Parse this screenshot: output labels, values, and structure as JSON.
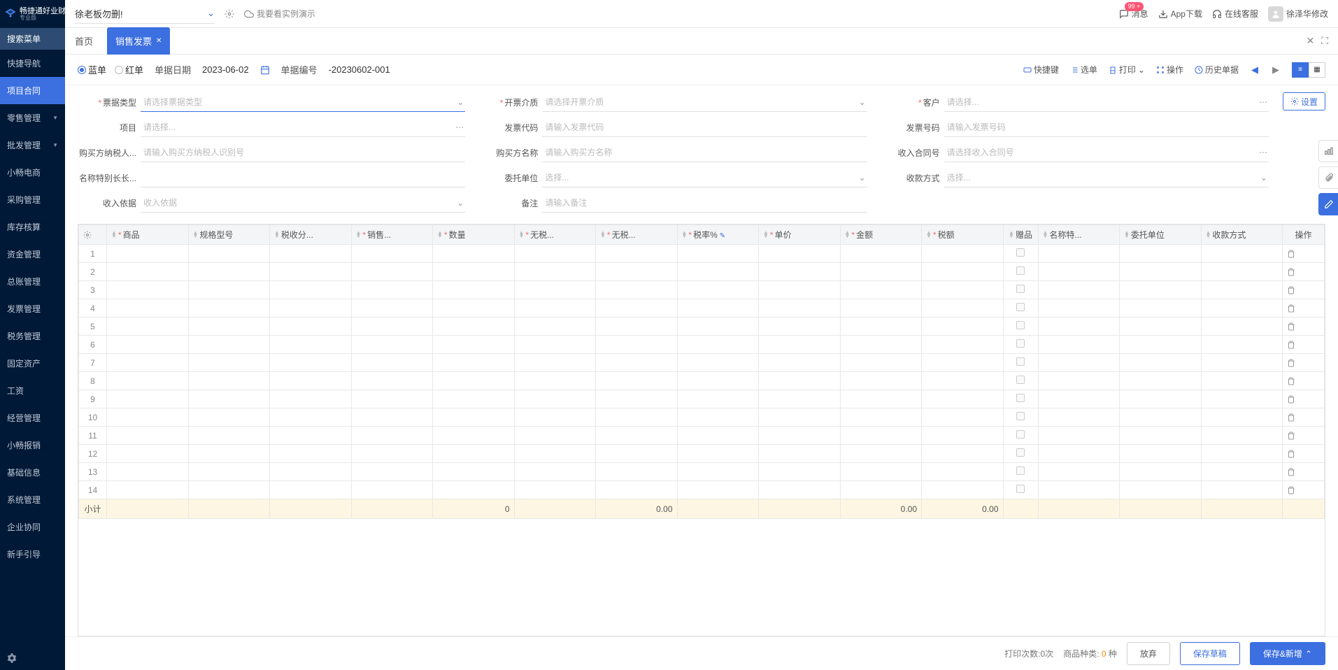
{
  "brand": {
    "name": "畅捷通好业财",
    "edition": "专业版"
  },
  "sidebar": {
    "search": "搜索菜单",
    "items": [
      {
        "label": "快捷导航",
        "caret": false
      },
      {
        "label": "项目合同",
        "caret": false,
        "active": true
      },
      {
        "label": "零售管理",
        "caret": true
      },
      {
        "label": "批发管理",
        "caret": true
      },
      {
        "label": "小畅电商",
        "caret": false
      },
      {
        "label": "采购管理",
        "caret": false
      },
      {
        "label": "库存核算",
        "caret": false
      },
      {
        "label": "资金管理",
        "caret": false
      },
      {
        "label": "总账管理",
        "caret": false
      },
      {
        "label": "发票管理",
        "caret": false
      },
      {
        "label": "税务管理",
        "caret": false
      },
      {
        "label": "固定资产",
        "caret": false
      },
      {
        "label": "工资",
        "caret": false
      },
      {
        "label": "经营管理",
        "caret": false
      },
      {
        "label": "小畅报销",
        "caret": false
      },
      {
        "label": "基础信息",
        "caret": false
      },
      {
        "label": "系统管理",
        "caret": false
      },
      {
        "label": "企业协同",
        "caret": false
      },
      {
        "label": "新手引导",
        "caret": false
      }
    ]
  },
  "topbar": {
    "dropdown": "徐老板勿删!",
    "demo": "我要看实例演示",
    "msg": "消息",
    "msg_badge": "99 +",
    "download": "App下载",
    "support": "在线客服",
    "user": "徐泽华修改"
  },
  "tabs": {
    "home": "首页",
    "active": "销售发票"
  },
  "toolbar": {
    "radio_blue": "蓝单",
    "radio_red": "红单",
    "date_label": "单据日期",
    "date_value": "2023-06-02",
    "doc_no_label": "单据编号",
    "doc_no_value": "-20230602-001",
    "shortcut": "快捷键",
    "select": "选单",
    "print": "打印",
    "ops": "操作",
    "history": "历史单据",
    "settings": "设置"
  },
  "form": {
    "r1c1": {
      "label": "票据类型",
      "ph": "请选择票据类型",
      "req": true,
      "suffix": "chevron",
      "hl": true
    },
    "r1c2": {
      "label": "开票介质",
      "ph": "请选择开票介质",
      "req": true,
      "suffix": "chevron"
    },
    "r1c3": {
      "label": "客户",
      "ph": "请选择...",
      "req": true,
      "suffix": "dots"
    },
    "r2c1": {
      "label": "项目",
      "ph": "请选择...",
      "suffix": "dots"
    },
    "r2c2": {
      "label": "发票代码",
      "ph": "请输入发票代码"
    },
    "r2c3": {
      "label": "发票号码",
      "ph": "请输入发票号码"
    },
    "r3c1": {
      "label": "购买方纳税人...",
      "ph": "请输入购买方纳税人识别号"
    },
    "r3c2": {
      "label": "购买方名称",
      "ph": "请输入购买方名称"
    },
    "r3c3": {
      "label": "收入合同号",
      "ph": "请选择收入合同号",
      "suffix": "dots"
    },
    "r4c1": {
      "label": "名称特别长长..."
    },
    "r4c2": {
      "label": "委托单位",
      "ph": "选择...",
      "suffix": "chevron"
    },
    "r4c3": {
      "label": "收款方式",
      "ph": "选择...",
      "suffix": "chevron"
    },
    "r5c1": {
      "label": "收入依据",
      "ph": "收入依据",
      "suffix": "chevron"
    },
    "r5c2": {
      "label": "备注",
      "ph": "请输入备注"
    }
  },
  "table": {
    "cols": [
      {
        "label": "商品",
        "req": true
      },
      {
        "label": "规格型号"
      },
      {
        "label": "税收分..."
      },
      {
        "label": "销售...",
        "req": true
      },
      {
        "label": "数量",
        "req": true
      },
      {
        "label": "无税...",
        "req": true
      },
      {
        "label": "无税...",
        "req": true
      },
      {
        "label": "税率%",
        "req": true,
        "edit": true
      },
      {
        "label": "单价",
        "req": true
      },
      {
        "label": "金额",
        "req": true
      },
      {
        "label": "税额",
        "req": true
      },
      {
        "label": "赠品",
        "chk": true
      },
      {
        "label": "名称特..."
      },
      {
        "label": "委托单位"
      },
      {
        "label": "收款方式"
      }
    ],
    "op_header": "操作",
    "rows": 14,
    "subtotal": {
      "label": "小计",
      "qty": "0",
      "amt_notax": "0.00",
      "amt": "0.00",
      "tax": "0.00"
    }
  },
  "footer": {
    "print_count": "打印次数:0次",
    "sku_label": "商品种类:",
    "sku_count": "0",
    "sku_unit": "种",
    "discard": "放弃",
    "draft": "保存草稿",
    "save": "保存&新增"
  }
}
